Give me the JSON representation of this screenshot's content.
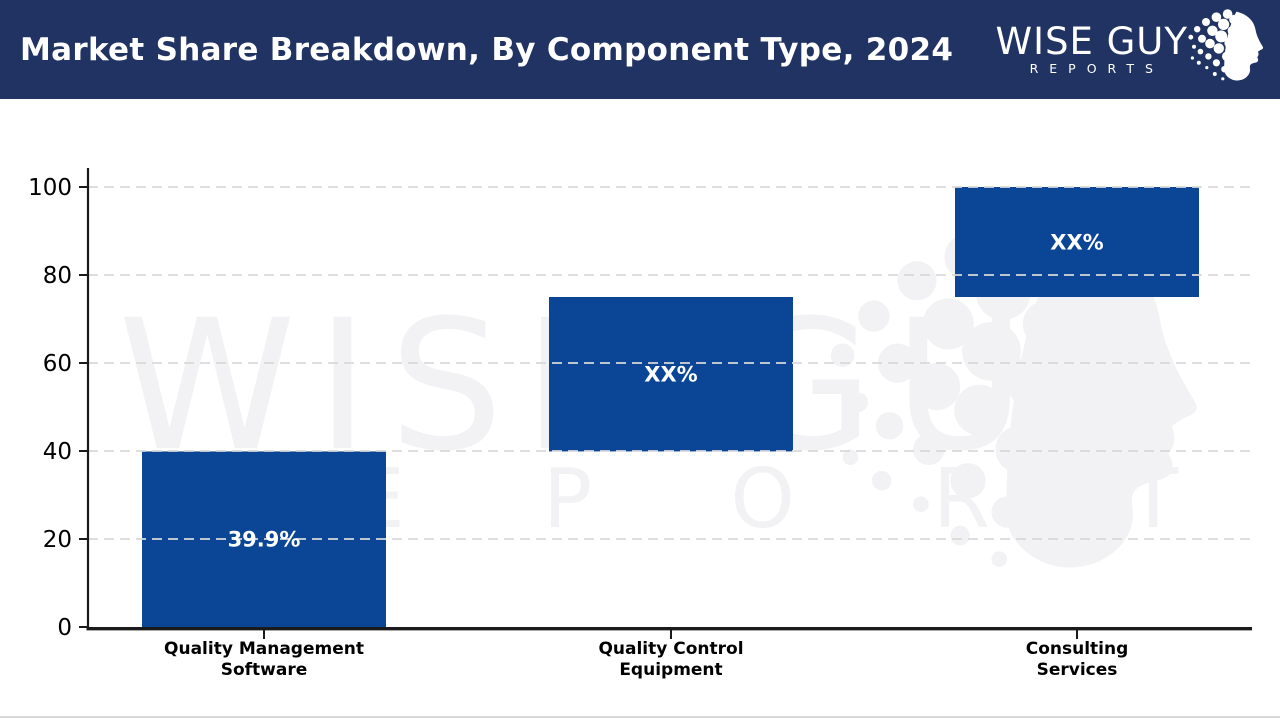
{
  "header": {
    "title": "Market Share Breakdown, By Component Type, 2024",
    "logo": {
      "line1": "WISE GUY",
      "line2": "REPORTS"
    }
  },
  "watermark": {
    "line1": "WISE GUY",
    "line2": "R E P O R T S"
  },
  "colors": {
    "header_bg": "#203363",
    "bar": "#0b4696",
    "grid": "#d9d9d9",
    "watermark": "#f2f2f4",
    "title_text": "#ffffff"
  },
  "chart_data": {
    "type": "bar",
    "variant": "waterfall",
    "title": "Market Share Breakdown, By Component Type, 2024",
    "xlabel": "",
    "ylabel": "",
    "ylim": [
      0,
      100
    ],
    "yticks": [
      0,
      20,
      40,
      60,
      80,
      100
    ],
    "grid": "horizontal dashed, drawn over bars",
    "legend": "none",
    "bar_color": "#0b4696",
    "value_label_color": "#ffffff",
    "categories": [
      "Quality Management\nSoftware",
      "Quality Control\nEquipment",
      "Consulting\nServices"
    ],
    "bars": [
      {
        "category": "Quality Management Software",
        "start": 0,
        "end": 39.9,
        "label": "39.9%"
      },
      {
        "category": "Quality Control Equipment",
        "start": 39.9,
        "end": 75,
        "label": "XX%"
      },
      {
        "category": "Consulting Services",
        "start": 75,
        "end": 100,
        "label": "XX%"
      }
    ]
  }
}
